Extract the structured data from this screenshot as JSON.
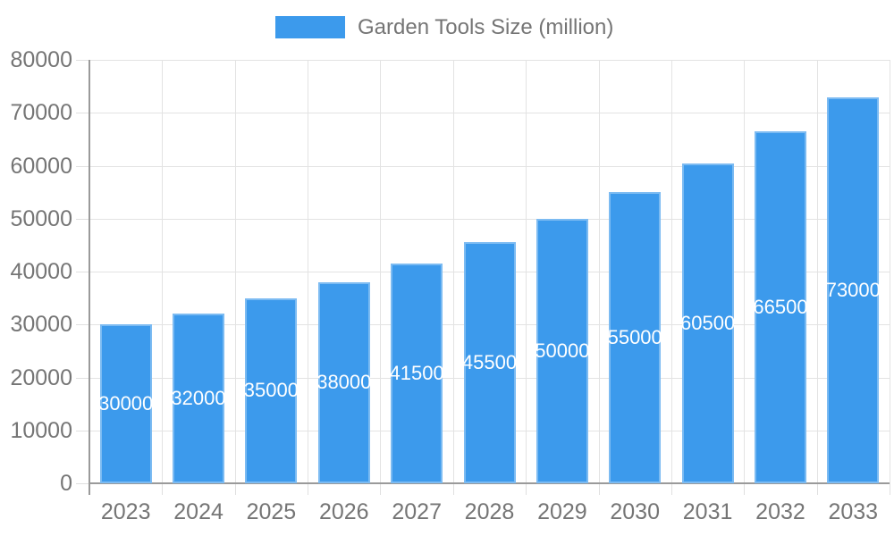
{
  "chart_data": {
    "type": "bar",
    "title": "Garden Tools Size (million)",
    "series_name": "Garden Tools Size (million)",
    "categories": [
      "2023",
      "2024",
      "2025",
      "2026",
      "2027",
      "2028",
      "2029",
      "2030",
      "2031",
      "2032",
      "2033"
    ],
    "values": [
      30000,
      32000,
      35000,
      38000,
      41500,
      45500,
      50000,
      55000,
      60500,
      66500,
      73000
    ],
    "bar_labels": [
      "30000",
      "32000",
      "35000",
      "38000",
      "41500",
      "45500",
      "50000",
      "55000",
      "60500",
      "66500",
      "73000"
    ],
    "xlabel": "",
    "ylabel": "",
    "ylim": [
      0,
      80000
    ],
    "ytick_step": 10000,
    "ytick_labels": [
      "0",
      "10000",
      "20000",
      "30000",
      "40000",
      "50000",
      "60000",
      "70000",
      "80000"
    ],
    "grid": "on",
    "legend_position": "top",
    "colors": {
      "bar": "#3c9aec",
      "bar_label_text": "#ffffff",
      "grid_line": "#e3e3e3",
      "axis_line": "#9a9a9a",
      "tick_text": "#757575",
      "legend_text": "#757575",
      "background": "#ffffff"
    }
  }
}
